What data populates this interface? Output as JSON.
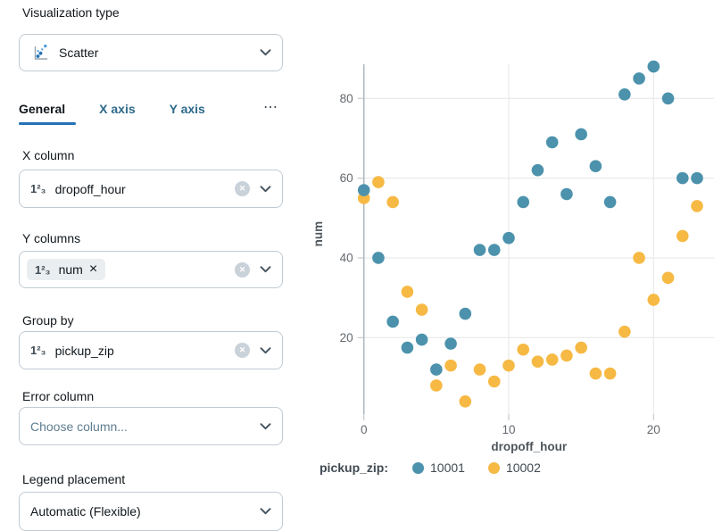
{
  "icons": {
    "number": "1²₃"
  },
  "sidebar": {
    "viz_type": {
      "label": "Visualization type",
      "value": "Scatter"
    },
    "tabs": {
      "general": "General",
      "x_axis": "X axis",
      "y_axis": "Y axis",
      "more": "⋯"
    },
    "x_column": {
      "label": "X column",
      "value": "dropoff_hour"
    },
    "y_columns": {
      "label": "Y columns",
      "chip_value": "num",
      "chip_remove": "×"
    },
    "group_by": {
      "label": "Group by",
      "value": "pickup_zip"
    },
    "error_column": {
      "label": "Error column",
      "placeholder": "Choose column..."
    },
    "legend_placement": {
      "label": "Legend placement",
      "value": "Automatic (Flexible)"
    }
  },
  "chart_data": {
    "type": "scatter",
    "title": "",
    "xlabel": "dropoff_hour",
    "ylabel": "num",
    "x_ticks": [
      0,
      10,
      20
    ],
    "y_ticks": [
      20,
      40,
      60,
      80
    ],
    "xlim": [
      -0.7,
      23.6
    ],
    "ylim": [
      0,
      92
    ],
    "grid": true,
    "legend_position": "bottom",
    "legend_title": "pickup_zip:",
    "series": [
      {
        "name": "10001",
        "color": "#4C92AC",
        "x": [
          0,
          1,
          2,
          3,
          4,
          5,
          6,
          7,
          8,
          9,
          10,
          11,
          12,
          13,
          14,
          15,
          16,
          17,
          18,
          19,
          20,
          21,
          22,
          23
        ],
        "y": [
          57,
          40,
          24,
          17.5,
          19.5,
          12,
          18.5,
          26,
          42,
          42,
          45,
          54,
          62,
          69,
          56,
          71,
          63,
          54,
          81,
          85,
          88,
          80,
          60,
          60
        ]
      },
      {
        "name": "10002",
        "color": "#F6B944",
        "x": [
          0,
          1,
          2,
          3,
          4,
          5,
          6,
          7,
          8,
          9,
          10,
          11,
          12,
          13,
          14,
          15,
          16,
          17,
          18,
          19,
          20,
          21,
          22,
          23
        ],
        "y": [
          55,
          59,
          54,
          31.5,
          27,
          8,
          13,
          4,
          12,
          9,
          13,
          17,
          14,
          14.5,
          15.5,
          17.5,
          11,
          11,
          21.5,
          40,
          29.5,
          35,
          45.5,
          53
        ]
      }
    ],
    "style": {
      "grid_color": "#EAEAEC",
      "axis_line_color": "#AEB5BA",
      "tick_color": "#C8CDD1",
      "tick_text_color": "#63686D",
      "axis_title_color": "#4E565C"
    }
  }
}
